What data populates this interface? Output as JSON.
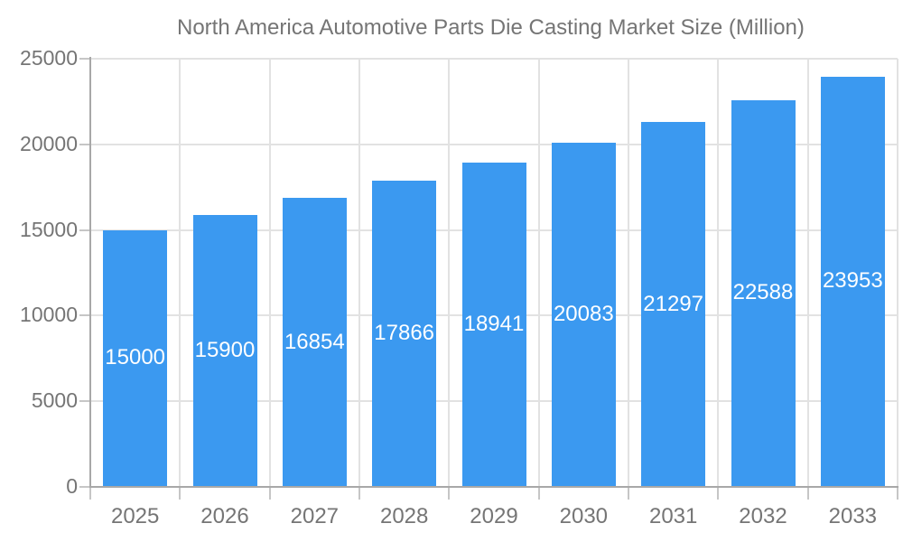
{
  "legend": {
    "label": "North America Automotive Parts Die Casting Market Size (Million)"
  },
  "chart_data": {
    "type": "bar",
    "title": "",
    "series_name": "North America Automotive Parts Die Casting Market Size (Million)",
    "categories": [
      "2025",
      "2026",
      "2027",
      "2028",
      "2029",
      "2030",
      "2031",
      "2032",
      "2033"
    ],
    "values": [
      15000,
      15900,
      16854,
      17866,
      18941,
      20083,
      21297,
      22588,
      23953
    ],
    "xlabel": "",
    "ylabel": "",
    "ylim": [
      0,
      25000
    ],
    "yticks": [
      0,
      5000,
      10000,
      15000,
      20000,
      25000
    ],
    "grid": true,
    "legend_position": "top",
    "value_label_position": "inside-center",
    "colors": {
      "bar": "#3b99f0",
      "grid": "#e2e2e2",
      "axis": "#a8a8a8",
      "tick": "#c6c6c6",
      "text": "#757575",
      "value_label": "#ffffff",
      "background": "#ffffff"
    }
  }
}
